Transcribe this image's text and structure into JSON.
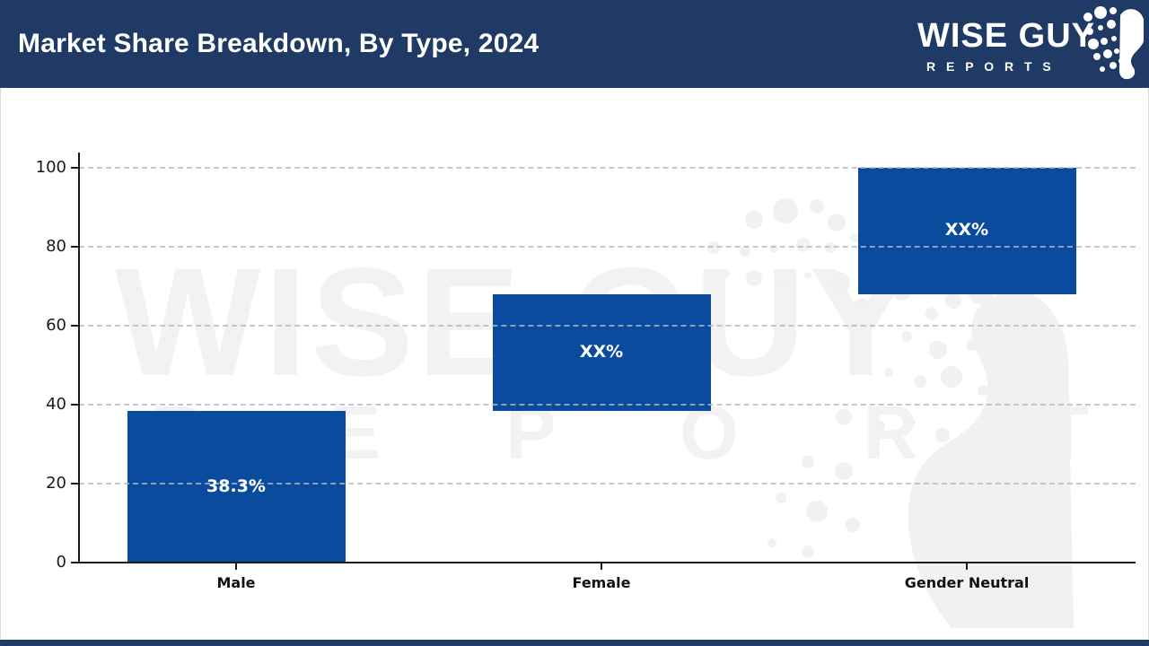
{
  "header": {
    "title": "Market Share Breakdown, By Type, 2024",
    "logo_line1": "WISE GUY",
    "logo_line2": "R E P O R T S"
  },
  "watermark": {
    "line1": "WISE GUY",
    "line2": "R E P O R T S"
  },
  "chart_data": {
    "type": "bar",
    "variant": "waterfall",
    "title": "Market Share Breakdown, By Type, 2024",
    "xlabel": "",
    "ylabel": "",
    "categories": [
      "Male",
      "Female",
      "Gender Neutral"
    ],
    "segments": [
      {
        "category": "Male",
        "start": 0,
        "end": 38.3,
        "label": "38.3%"
      },
      {
        "category": "Female",
        "start": 38.3,
        "end": 68,
        "label": "XX%"
      },
      {
        "category": "Gender Neutral",
        "start": 68,
        "end": 100,
        "label": "XX%"
      }
    ],
    "ylim": [
      0,
      100
    ],
    "y_ticks": [
      0,
      20,
      40,
      60,
      80,
      100
    ],
    "grid": "horizontal-dashed",
    "legend": "none",
    "bar_color": "#0b4b9e",
    "bar_label_color": "#ffffff",
    "axis_color": "#1a1a1a"
  },
  "colors": {
    "header_bg": "#1f3a64",
    "footer_bg": "#1f3a64",
    "watermark": "#f1f1f1",
    "grid": "#c9ccd4"
  }
}
